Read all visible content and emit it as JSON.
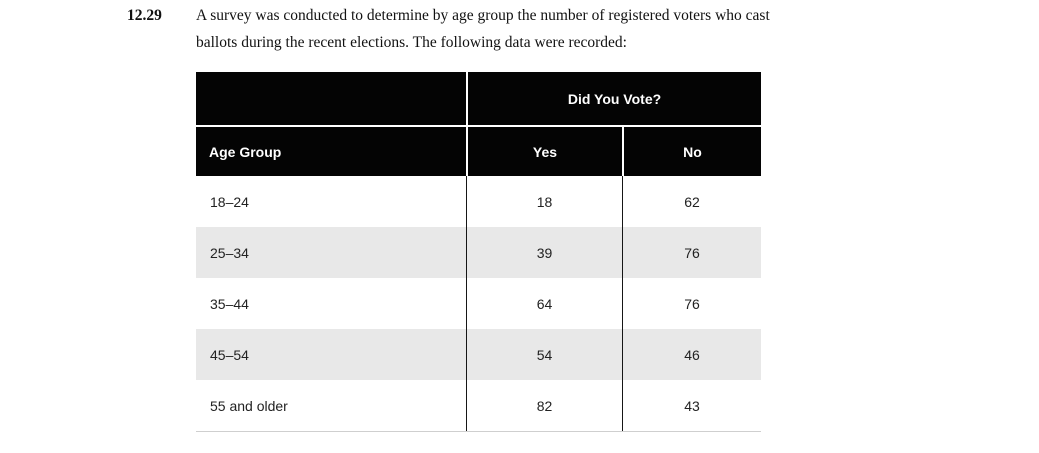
{
  "problem": {
    "number": "12.29",
    "text": "A survey was conducted to determine by age group the number of registered voters who cast ballots during the recent elections. The following data were recorded:"
  },
  "table": {
    "group_header": "Did You Vote?",
    "columns": {
      "age_group": "Age Group",
      "yes": "Yes",
      "no": "No"
    },
    "rows": [
      {
        "age_group": "18–24",
        "yes": "18",
        "no": "62"
      },
      {
        "age_group": "25–34",
        "yes": "39",
        "no": "76"
      },
      {
        "age_group": "35–44",
        "yes": "64",
        "no": "76"
      },
      {
        "age_group": "45–54",
        "yes": "54",
        "no": "46"
      },
      {
        "age_group": "55 and older",
        "yes": "82",
        "no": "43"
      }
    ]
  }
}
